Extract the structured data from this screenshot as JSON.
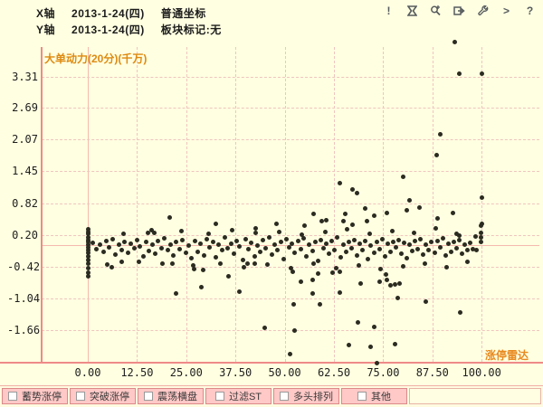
{
  "header": {
    "row1": {
      "axis": "X轴",
      "date": "2013-1-24(四)",
      "mode": "普通坐标"
    },
    "row2": {
      "axis": "Y轴",
      "date": "2013-1-24(四)",
      "mode": "板块标记:无"
    }
  },
  "toolbar": {
    "icons": [
      "alert",
      "hourglass",
      "zoom-in",
      "export",
      "wrench",
      "arrow-right",
      "help"
    ],
    "glyph_alert": "!",
    "glyph_arrow_right": ">",
    "glyph_help": "?"
  },
  "chart_data": {
    "type": "scatter",
    "title": "大单动力(20分)(千万)",
    "corner_label": "涨停雷达",
    "xlabel": "",
    "ylabel": "大单动力(20分)(千万)",
    "x_range": [
      0,
      100
    ],
    "y_range_visible": [
      -2.3,
      4.0
    ],
    "grid": "dashed-pink, solid lines at x=0 and y=0",
    "x_ticks": [
      {
        "v": 0,
        "label": "0.00"
      },
      {
        "v": 12.5,
        "label": "12.50"
      },
      {
        "v": 25,
        "label": "25.00"
      },
      {
        "v": 37.5,
        "label": "37.50"
      },
      {
        "v": 50,
        "label": "50.00"
      },
      {
        "v": 62.5,
        "label": "62.50"
      },
      {
        "v": 75,
        "label": "75.00"
      },
      {
        "v": 87.5,
        "label": "87.50"
      },
      {
        "v": 100,
        "label": "100.00"
      }
    ],
    "y_ticks": [
      {
        "v": 3.31,
        "label": "3.31"
      },
      {
        "v": 2.69,
        "label": "2.69"
      },
      {
        "v": 2.07,
        "label": "2.07"
      },
      {
        "v": 1.45,
        "label": "1.45"
      },
      {
        "v": 0.82,
        "label": "0.82"
      },
      {
        "v": 0.2,
        "label": "0.20"
      },
      {
        "v": -0.42,
        "label": "-0.42"
      },
      {
        "v": -1.04,
        "label": "-1.04"
      },
      {
        "v": -1.66,
        "label": "-1.66"
      }
    ],
    "points": [
      [
        93.1,
        3.99
      ],
      [
        94.3,
        3.37
      ],
      [
        100,
        3.37
      ],
      [
        89.6,
        2.17
      ],
      [
        88.5,
        1.76
      ],
      [
        80,
        1.34
      ],
      [
        63.9,
        1.22
      ],
      [
        67.1,
        1.09
      ],
      [
        68.3,
        1.03
      ],
      [
        100,
        0.93
      ],
      [
        81.7,
        0.88
      ],
      [
        84.2,
        0.75
      ],
      [
        70.4,
        0.73
      ],
      [
        81.1,
        0.69
      ],
      [
        76,
        0.64
      ],
      [
        92.6,
        0.64
      ],
      [
        65.4,
        0.61
      ],
      [
        57.4,
        0.61
      ],
      [
        72.7,
        0.58
      ],
      [
        20.7,
        0.54
      ],
      [
        88.9,
        0.52
      ],
      [
        60.5,
        0.5
      ],
      [
        65,
        0.47
      ],
      [
        70.8,
        0.48
      ],
      [
        59.3,
        0.47
      ],
      [
        32.6,
        0.43
      ],
      [
        48,
        0.43
      ],
      [
        100,
        0.43
      ],
      [
        67.3,
        0.4
      ],
      [
        99.9,
        0.38
      ],
      [
        55,
        0.38
      ],
      [
        42.7,
        0.34
      ],
      [
        16.3,
        0.29
      ],
      [
        15.2,
        0.24
      ],
      [
        99.9,
        0.25
      ],
      [
        94.3,
        0.2
      ],
      [
        99.9,
        0.15
      ],
      [
        99.9,
        0.06
      ],
      [
        98.6,
        -0.1
      ],
      [
        73.5,
        -2.3
      ],
      [
        51.3,
        -2.13
      ],
      [
        71.8,
        -1.98
      ],
      [
        66.2,
        -1.96
      ],
      [
        78.1,
        -1.94
      ],
      [
        52.4,
        -1.66
      ],
      [
        44.9,
        -1.62
      ],
      [
        72.7,
        -1.6
      ],
      [
        68.5,
        -1.51
      ],
      [
        94.5,
        -1.32
      ],
      [
        52.2,
        -1.16
      ],
      [
        58.9,
        -1.15
      ],
      [
        85.7,
        -1.1
      ],
      [
        78.8,
        -1.03
      ],
      [
        57,
        -0.95
      ],
      [
        63.9,
        -0.93
      ],
      [
        22.3,
        -0.95
      ],
      [
        38.4,
        -0.9
      ],
      [
        28.8,
        -0.82
      ],
      [
        76.9,
        -0.79
      ],
      [
        78.1,
        -0.77
      ],
      [
        79.2,
        -0.74
      ],
      [
        69.2,
        -0.74
      ],
      [
        74.2,
        -0.72
      ],
      [
        54.2,
        -0.72
      ],
      [
        57,
        -0.67
      ],
      [
        75.9,
        -0.67
      ],
      [
        35.7,
        -0.61
      ],
      [
        0,
        -0.6
      ],
      [
        58.5,
        -0.56
      ],
      [
        75.8,
        -0.57
      ],
      [
        0,
        -0.54
      ],
      [
        62.1,
        -0.54
      ],
      [
        63.9,
        -0.52
      ],
      [
        52,
        -0.51
      ],
      [
        29.2,
        -0.48
      ],
      [
        26.9,
        -0.46
      ],
      [
        6,
        -0.42
      ],
      [
        21.4,
        -0.36
      ],
      [
        40.5,
        -0.36
      ],
      [
        42.4,
        -0.36
      ],
      [
        8.7,
        -0.33
      ],
      [
        0,
        0.32
      ],
      [
        0,
        0.27
      ],
      [
        0,
        0.22
      ],
      [
        0,
        0.16
      ],
      [
        0,
        0.11
      ],
      [
        0,
        0.06
      ],
      [
        0,
        0.01
      ],
      [
        0,
        -0.04
      ],
      [
        0,
        -0.09
      ],
      [
        0,
        -0.15
      ],
      [
        0,
        -0.21
      ],
      [
        0,
        -0.28
      ],
      [
        0,
        -0.36
      ],
      [
        0,
        -0.44
      ],
      [
        1.2,
        0.05
      ],
      [
        2.1,
        -0.08
      ],
      [
        3,
        0.02
      ],
      [
        3.9,
        -0.13
      ],
      [
        4.6,
        0.08
      ],
      [
        5.4,
        -0.03
      ],
      [
        6.2,
        0.12
      ],
      [
        7,
        -0.18
      ],
      [
        7.9,
        0.01
      ],
      [
        8.6,
        -0.09
      ],
      [
        9.4,
        0.06
      ],
      [
        10.2,
        -0.14
      ],
      [
        11,
        0.03
      ],
      [
        11.8,
        -0.06
      ],
      [
        12.5,
        0.1
      ],
      [
        13.3,
        -0.02
      ],
      [
        14.1,
        -0.22
      ],
      [
        14.8,
        0.07
      ],
      [
        15.6,
        -0.11
      ],
      [
        16.4,
        0.01
      ],
      [
        17.1,
        -0.17
      ],
      [
        17.9,
        0.09
      ],
      [
        18.7,
        -0.05
      ],
      [
        19.5,
        0.14
      ],
      [
        20.3,
        -0.1
      ],
      [
        21,
        0.02
      ],
      [
        21.8,
        -0.2
      ],
      [
        22.5,
        0.06
      ],
      [
        23.3,
        -0.07
      ],
      [
        24.1,
        0.11
      ],
      [
        24.9,
        -0.15
      ],
      [
        25.6,
        0
      ],
      [
        26.4,
        -0.25
      ],
      [
        27.2,
        0.08
      ],
      [
        27.9,
        -0.12
      ],
      [
        28.7,
        0.04
      ],
      [
        29.5,
        -0.19
      ],
      [
        30.2,
        0.13
      ],
      [
        31,
        -0.04
      ],
      [
        31.8,
        0.07
      ],
      [
        32.5,
        -0.23
      ],
      [
        33.3,
        0.01
      ],
      [
        34,
        -0.1
      ],
      [
        34.8,
        0.15
      ],
      [
        35.5,
        -0.06
      ],
      [
        36.3,
        0.03
      ],
      [
        37,
        -0.16
      ],
      [
        37.8,
        0.09
      ],
      [
        38.5,
        -0.02
      ],
      [
        39.3,
        -0.28
      ],
      [
        40,
        0.12
      ],
      [
        40.8,
        -0.08
      ],
      [
        41.5,
        0.05
      ],
      [
        42.3,
        -0.21
      ],
      [
        43,
        0
      ],
      [
        43.8,
        -0.13
      ],
      [
        44.5,
        0.1
      ],
      [
        45.2,
        -0.05
      ],
      [
        46,
        0.16
      ],
      [
        46.7,
        -0.18
      ],
      [
        47.5,
        0.02
      ],
      [
        48.2,
        -0.09
      ],
      [
        49,
        0.07
      ],
      [
        49.7,
        -0.26
      ],
      [
        50.4,
        0.12
      ],
      [
        51.1,
        -0.03
      ],
      [
        51.9,
        0.04
      ],
      [
        52.6,
        -0.15
      ],
      [
        53.3,
        0.08
      ],
      [
        54.1,
        -0.07
      ],
      [
        54.8,
        0.14
      ],
      [
        55.5,
        -0.22
      ],
      [
        56.2,
        0.01
      ],
      [
        57,
        -0.11
      ],
      [
        57.7,
        0.06
      ],
      [
        58.4,
        -0.3
      ],
      [
        59.1,
        0.1
      ],
      [
        59.8,
        -0.05
      ],
      [
        60.6,
        0.03
      ],
      [
        61.3,
        -0.17
      ],
      [
        62,
        0.08
      ],
      [
        62.7,
        -0.09
      ],
      [
        63.4,
        0.15
      ],
      [
        64.1,
        -0.24
      ],
      [
        64.9,
        0.02
      ],
      [
        65.6,
        -0.13
      ],
      [
        66.3,
        0.07
      ],
      [
        67,
        -0.06
      ],
      [
        67.7,
        0.11
      ],
      [
        68.4,
        -0.19
      ],
      [
        69.1,
        0.04
      ],
      [
        69.8,
        -0.1
      ],
      [
        70.5,
        0.09
      ],
      [
        71.2,
        -0.27
      ],
      [
        71.9,
        0
      ],
      [
        72.6,
        -0.14
      ],
      [
        73.3,
        0.06
      ],
      [
        74,
        -0.08
      ],
      [
        74.7,
        0.13
      ],
      [
        75.4,
        -0.21
      ],
      [
        76.1,
        0.03
      ],
      [
        76.8,
        -0.12
      ],
      [
        77.5,
        0.07
      ],
      [
        78.2,
        -0.04
      ],
      [
        78.9,
        0.1
      ],
      [
        79.6,
        -0.16
      ],
      [
        80.3,
        0.05
      ],
      [
        81,
        -0.25
      ],
      [
        81.7,
        0.01
      ],
      [
        82.4,
        -0.11
      ],
      [
        83.1,
        0.08
      ],
      [
        83.8,
        -0.07
      ],
      [
        84.5,
        0.12
      ],
      [
        85.2,
        -0.18
      ],
      [
        85.9,
        0.02
      ],
      [
        86.6,
        -0.09
      ],
      [
        87.3,
        0.06
      ],
      [
        88,
        -0.14
      ],
      [
        88.7,
        0.09
      ],
      [
        89.4,
        -0.03
      ],
      [
        90.1,
        0.14
      ],
      [
        90.8,
        -0.2
      ],
      [
        91.5,
        0.04
      ],
      [
        92.2,
        -0.12
      ],
      [
        92.9,
        0.07
      ],
      [
        93.6,
        -0.06
      ],
      [
        94.3,
        0.1
      ],
      [
        95,
        -0.16
      ],
      [
        95.7,
        0.01
      ],
      [
        96.4,
        -0.1
      ],
      [
        97.1,
        0.05
      ],
      [
        97.8,
        -0.08
      ],
      [
        5,
        -0.38
      ],
      [
        9,
        0.22
      ],
      [
        13,
        -0.33
      ],
      [
        16.8,
        0.25
      ],
      [
        19,
        -0.36
      ],
      [
        23.8,
        0.28
      ],
      [
        26.8,
        -0.4
      ],
      [
        30.6,
        0.22
      ],
      [
        33.6,
        -0.35
      ],
      [
        36.6,
        0.3
      ],
      [
        39.6,
        -0.42
      ],
      [
        42.6,
        0.24
      ],
      [
        45.6,
        -0.38
      ],
      [
        48.6,
        0.27
      ],
      [
        51.5,
        -0.44
      ],
      [
        54.4,
        0.21
      ],
      [
        57.3,
        -0.36
      ],
      [
        60.2,
        0.26
      ],
      [
        63,
        -0.45
      ],
      [
        65.9,
        0.31
      ],
      [
        68.8,
        -0.39
      ],
      [
        71.6,
        0.23
      ],
      [
        74.4,
        -0.47
      ],
      [
        77.2,
        0.28
      ],
      [
        80,
        -0.41
      ],
      [
        82.8,
        0.25
      ],
      [
        85.5,
        -0.35
      ],
      [
        88.3,
        0.33
      ],
      [
        91,
        -0.43
      ],
      [
        93.7,
        0.22
      ],
      [
        96.3,
        -0.33
      ],
      [
        98.5,
        0.18
      ]
    ]
  },
  "filter_bar": {
    "items": [
      {
        "label": "蓄势涨停",
        "checked": false
      },
      {
        "label": "突破涨停",
        "checked": false
      },
      {
        "label": "震荡横盘",
        "checked": false
      },
      {
        "label": "过滤ST",
        "checked": false
      },
      {
        "label": "多头排列",
        "checked": false
      },
      {
        "label": "其他",
        "checked": false
      }
    ]
  },
  "colors": {
    "background": "#FFFFE1",
    "axis_line": "#EE8A88",
    "grid_dashed": "#EFC5BF",
    "grid_solid": "#F5B9AF",
    "point": "#2B2B21",
    "title_orange": "#DE8A10",
    "corner_orange": "#E8891F",
    "filter_cell_bg": "#FFC9C7",
    "filter_cell_border": "#DB8A88"
  }
}
